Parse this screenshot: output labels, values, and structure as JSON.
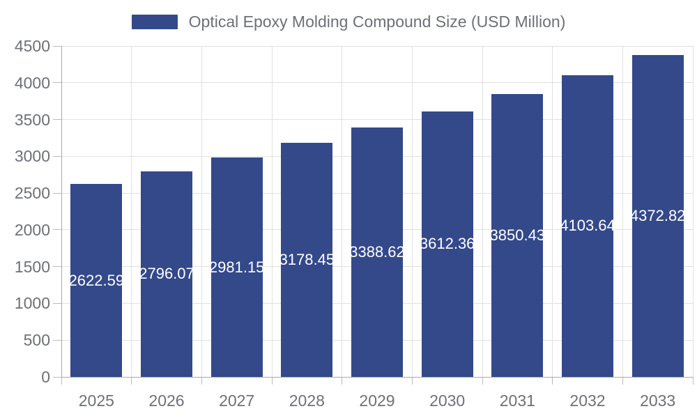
{
  "legend": {
    "series_label": "Optical Epoxy Molding Compound Size (USD Million)"
  },
  "chart_data": {
    "type": "bar",
    "title": "Optical Epoxy Molding Compound Size (USD Million)",
    "categories": [
      "2025",
      "2026",
      "2027",
      "2028",
      "2029",
      "2030",
      "2031",
      "2032",
      "2033"
    ],
    "values": [
      2622.59,
      2796.07,
      2981.15,
      3178.45,
      3388.62,
      3612.36,
      3850.43,
      4103.64,
      4372.82
    ],
    "value_labels": [
      "2622.59",
      "2796.07",
      "2981.15",
      "3178.45",
      "3388.62",
      "3612.36",
      "3850.43",
      "4103.64",
      "4372.82"
    ],
    "xlabel": "",
    "ylabel": "",
    "ylim": [
      0,
      4500
    ],
    "ytick_interval": 500,
    "ytick_labels": [
      "0",
      "500",
      "1000",
      "1500",
      "2000",
      "2500",
      "3000",
      "3500",
      "4000",
      "4500"
    ],
    "grid": true,
    "legend_position": "top-center",
    "bar_label_position": "inside-middle",
    "colors": {
      "bar": "#34498A",
      "bar_label": "#FFFFFF",
      "axis_text": "#6E7079",
      "grid_line": "#E0E0E0",
      "axis_line": "#AAAAAA",
      "background": "#FFFFFF"
    }
  }
}
